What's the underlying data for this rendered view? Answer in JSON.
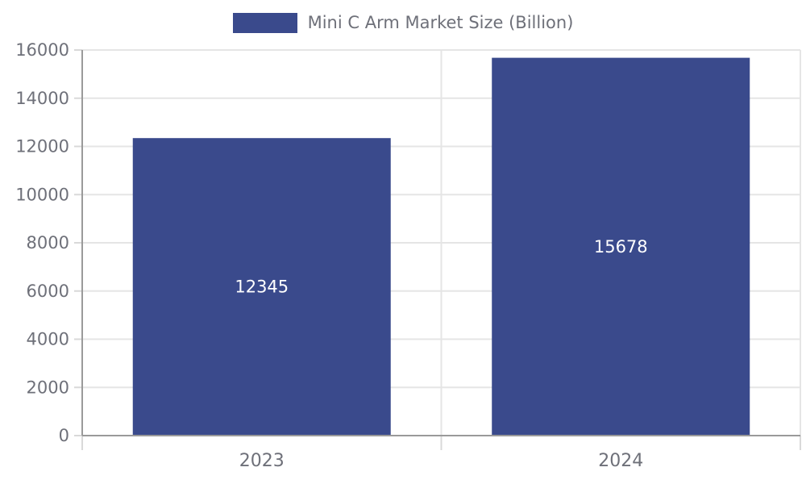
{
  "chart_data": {
    "type": "bar",
    "title": "Mini C Arm Market Size (Billion)",
    "categories": [
      "2023",
      "2024"
    ],
    "series": [
      {
        "name": "Mini C Arm Market Size (Billion)",
        "values": [
          12345,
          15678
        ]
      }
    ],
    "xlabel": "",
    "ylabel": "",
    "ylim": [
      0,
      16000
    ],
    "yticks": [
      0,
      2000,
      4000,
      6000,
      8000,
      10000,
      12000,
      14000,
      16000
    ],
    "grid": true,
    "legend_position": "top-center",
    "bar_label_position": "inside-center"
  },
  "colors": {
    "bar": "#3A4A8C",
    "grid": "#E5E5E5",
    "axis": "#9A9A9A",
    "tick": "#D9D9D9",
    "label": "#6E7079",
    "bar_label": "#FFFFFF",
    "background": "#FFFFFF"
  }
}
